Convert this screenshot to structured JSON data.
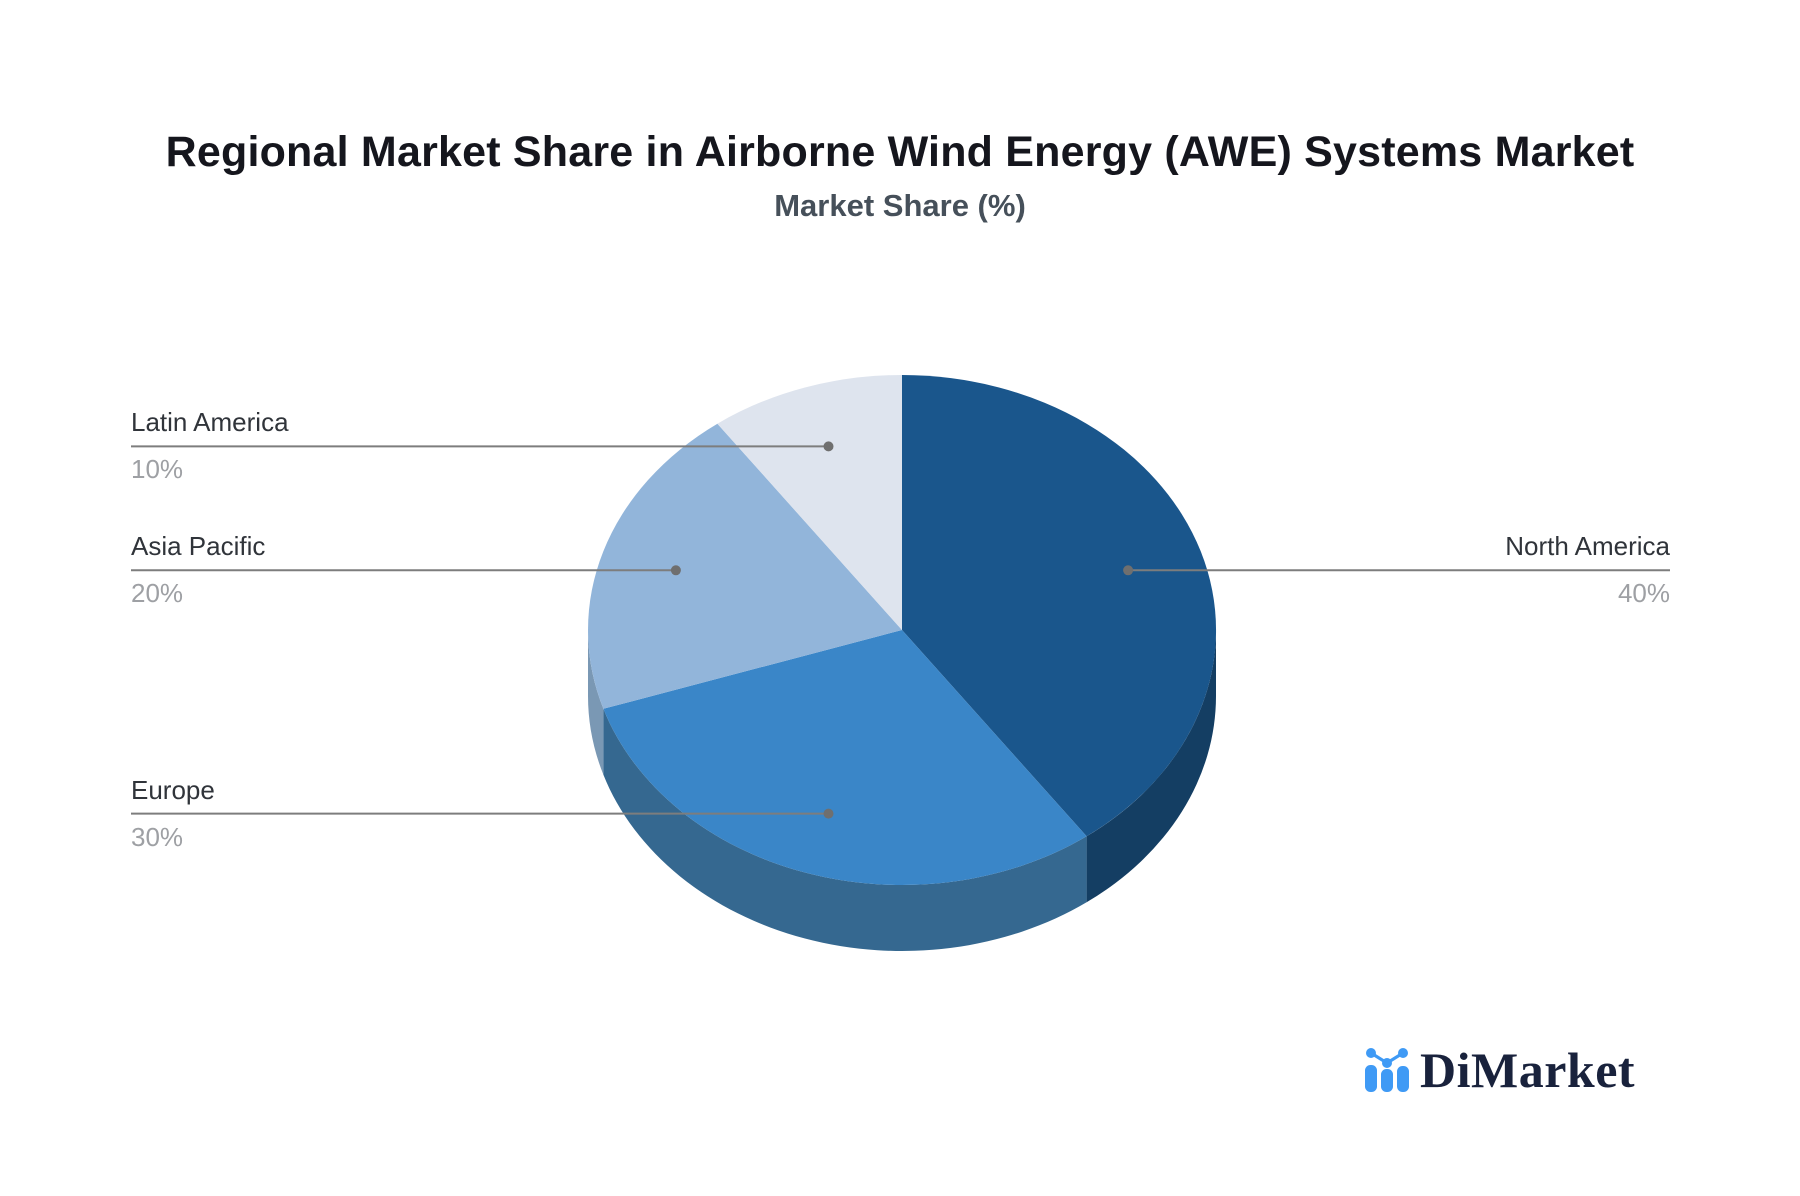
{
  "chart_data": {
    "type": "pie",
    "style": "3d",
    "title": "Regional Market Share in Airborne Wind Energy (AWE) Systems Market",
    "subtitle": "Market Share (%)",
    "unit": "%",
    "categories": [
      "North America",
      "Europe",
      "Asia Pacific",
      "Latin America"
    ],
    "values": [
      40,
      30,
      20,
      10
    ],
    "start_angle": "12-o-clock",
    "direction": "clockwise",
    "legend_position": "none",
    "label_style": "callout-leader-lines",
    "slices": [
      {
        "label": "North America",
        "value": 40,
        "pct_text": "40%",
        "color": "#1A568C",
        "side_color": "#143E63"
      },
      {
        "label": "Europe",
        "value": 30,
        "pct_text": "30%",
        "color": "#3A86C8",
        "side_color": "#356890"
      },
      {
        "label": "Asia Pacific",
        "value": 20,
        "pct_text": "20%",
        "color": "#92B5DA",
        "side_color": "#7A98B4"
      },
      {
        "label": "Latin America",
        "value": 10,
        "pct_text": "10%",
        "color": "#DEE4EE",
        "side_color": "#C3CDDC"
      }
    ]
  },
  "style": {
    "leader_line_color": "#7D7D7D",
    "dot_color": "#6F6F6F",
    "label_color": "#30343A",
    "pct_color": "#9EA0A4",
    "title_color": "#15161D",
    "subtitle_color": "#46505A"
  },
  "logo": {
    "text": "DiMarket",
    "icon": "bar-chart-trend-icon",
    "accent_color": "#3F9AF5",
    "text_color": "#19223C"
  }
}
